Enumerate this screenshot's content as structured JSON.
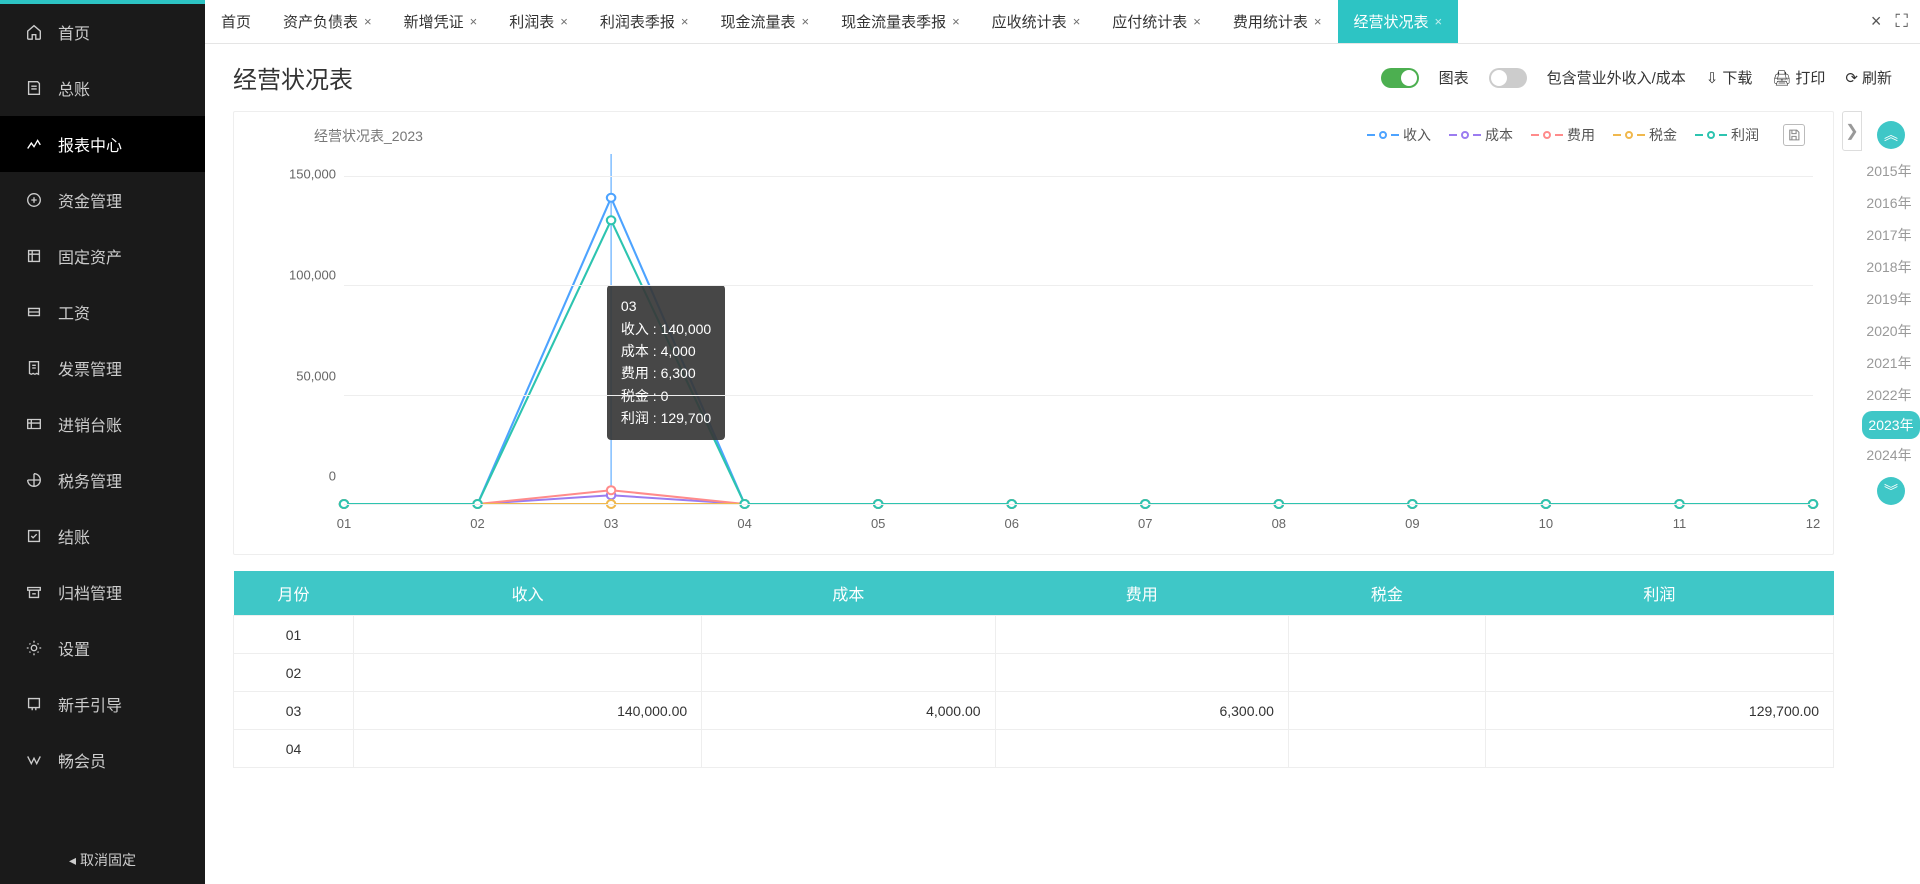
{
  "sidebar": {
    "items": [
      {
        "label": "首页",
        "icon": "home-icon"
      },
      {
        "label": "总账",
        "icon": "ledger-icon"
      },
      {
        "label": "报表中心",
        "icon": "chart-icon",
        "active": true
      },
      {
        "label": "资金管理",
        "icon": "money-icon"
      },
      {
        "label": "固定资产",
        "icon": "asset-icon"
      },
      {
        "label": "工资",
        "icon": "salary-icon"
      },
      {
        "label": "发票管理",
        "icon": "invoice-icon"
      },
      {
        "label": "进销台账",
        "icon": "stock-icon"
      },
      {
        "label": "税务管理",
        "icon": "tax-icon"
      },
      {
        "label": "结账",
        "icon": "close-icon"
      },
      {
        "label": "归档管理",
        "icon": "archive-icon"
      },
      {
        "label": "设置",
        "icon": "gear-icon"
      },
      {
        "label": "新手引导",
        "icon": "guide-icon"
      },
      {
        "label": "畅会员",
        "icon": "vip-icon"
      }
    ],
    "footer": "◂ 取消固定"
  },
  "tabs": {
    "items": [
      {
        "label": "首页",
        "closable": false
      },
      {
        "label": "资产负债表",
        "closable": true
      },
      {
        "label": "新增凭证",
        "closable": true
      },
      {
        "label": "利润表",
        "closable": true
      },
      {
        "label": "利润表季报",
        "closable": true
      },
      {
        "label": "现金流量表",
        "closable": true
      },
      {
        "label": "现金流量表季报",
        "closable": true
      },
      {
        "label": "应收统计表",
        "closable": true
      },
      {
        "label": "应付统计表",
        "closable": true
      },
      {
        "label": "费用统计表",
        "closable": true
      },
      {
        "label": "经营状况表",
        "closable": true,
        "active": true
      }
    ],
    "close_all_symbol": "×",
    "fullscreen_symbol": "⛶"
  },
  "page": {
    "title": "经营状况表"
  },
  "toolbar": {
    "chart_toggle_label": "图表",
    "extra_toggle_label": "包含营业外收入/成本",
    "download": "下载",
    "print": "打印",
    "refresh": "刷新",
    "download_icon": "⇩",
    "print_icon": "🖨",
    "refresh_icon": "⟳"
  },
  "chart": {
    "title": "经营状况表_2023",
    "type": "line",
    "x_categories": [
      "01",
      "02",
      "03",
      "04",
      "05",
      "06",
      "07",
      "08",
      "09",
      "10",
      "11",
      "12"
    ],
    "y_ticks": [
      0,
      50000,
      100000,
      150000
    ],
    "y_tick_labels": [
      "0",
      "50,000",
      "100,000",
      "150,000"
    ],
    "ylim": [
      0,
      160000
    ],
    "grid_color": "#eeeeee",
    "axis_text_color": "#666666",
    "background_color": "#ffffff",
    "marker_radius": 4,
    "line_width": 2,
    "series": [
      {
        "name": "收入",
        "color": "#4da3ff",
        "data": [
          0,
          0,
          140000,
          0,
          0,
          0,
          0,
          0,
          0,
          0,
          0,
          0
        ]
      },
      {
        "name": "成本",
        "color": "#9b7cf0",
        "data": [
          0,
          0,
          4000,
          0,
          0,
          0,
          0,
          0,
          0,
          0,
          0,
          0
        ]
      },
      {
        "name": "费用",
        "color": "#ff8b8b",
        "data": [
          0,
          0,
          6300,
          0,
          0,
          0,
          0,
          0,
          0,
          0,
          0,
          0
        ]
      },
      {
        "name": "税金",
        "color": "#f0b84d",
        "data": [
          0,
          0,
          0,
          0,
          0,
          0,
          0,
          0,
          0,
          0,
          0,
          0
        ]
      },
      {
        "name": "利润",
        "color": "#2dc4b0",
        "data": [
          0,
          0,
          129700,
          0,
          0,
          0,
          0,
          0,
          0,
          0,
          0,
          0
        ]
      }
    ],
    "hover_index": 2,
    "tooltip": {
      "title": "03",
      "lines": [
        "收入 : 140,000",
        "成本 : 4,000",
        "费用 : 6,300",
        "税金 : 0",
        "利润 : 129,700"
      ]
    }
  },
  "table": {
    "columns": [
      "月份",
      "收入",
      "成本",
      "费用",
      "税金",
      "利润"
    ],
    "rows": [
      {
        "month": "01",
        "income": "",
        "cost": "",
        "expense": "",
        "tax": "",
        "profit": ""
      },
      {
        "month": "02",
        "income": "",
        "cost": "",
        "expense": "",
        "tax": "",
        "profit": ""
      },
      {
        "month": "03",
        "income": "140,000.00",
        "cost": "4,000.00",
        "expense": "6,300.00",
        "tax": "",
        "profit": "129,700.00"
      },
      {
        "month": "04",
        "income": "",
        "cost": "",
        "expense": "",
        "tax": "",
        "profit": ""
      }
    ]
  },
  "years": {
    "items": [
      "2015年",
      "2016年",
      "2017年",
      "2018年",
      "2019年",
      "2020年",
      "2021年",
      "2022年",
      "2023年",
      "2024年"
    ],
    "active": "2023年",
    "up_symbol": "︽",
    "down_symbol": "︾",
    "collapse_symbol": "❯"
  }
}
